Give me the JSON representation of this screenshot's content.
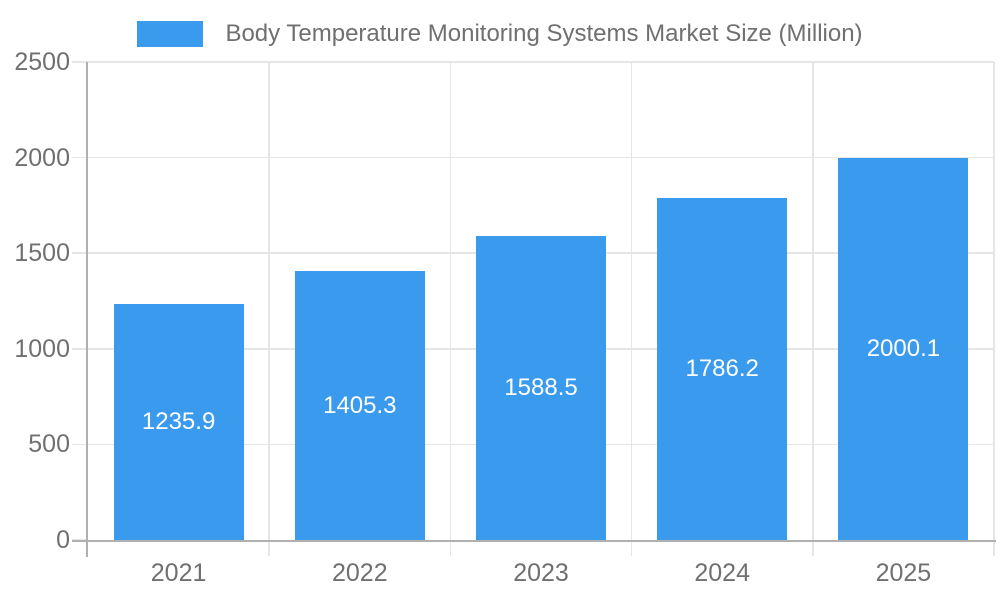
{
  "legend": {
    "label": "Body Temperature Monitoring Systems Market Size (Million)"
  },
  "chart_data": {
    "type": "bar",
    "title": "",
    "categories": [
      "2021",
      "2022",
      "2023",
      "2024",
      "2025"
    ],
    "values": [
      1235.9,
      1405.3,
      1588.5,
      1786.2,
      2000.1
    ],
    "series": [
      {
        "name": "Body Temperature Monitoring Systems Market Size (Million)",
        "values": [
          1235.9,
          1405.3,
          1588.5,
          1786.2,
          2000.1
        ]
      }
    ],
    "xlabel": "",
    "ylabel": "",
    "ylim": [
      0,
      2500
    ],
    "yticks": [
      0,
      500,
      1000,
      1500,
      2000,
      2500
    ],
    "grid": true,
    "legend_position": "top",
    "bar_labels_visible": true,
    "colors": {
      "bar": "#399AEE",
      "grid": "#e6e6e6",
      "axis": "#b0b0b0",
      "text": "#707070",
      "bar_label": "#ffffff",
      "background": "#ffffff"
    }
  }
}
